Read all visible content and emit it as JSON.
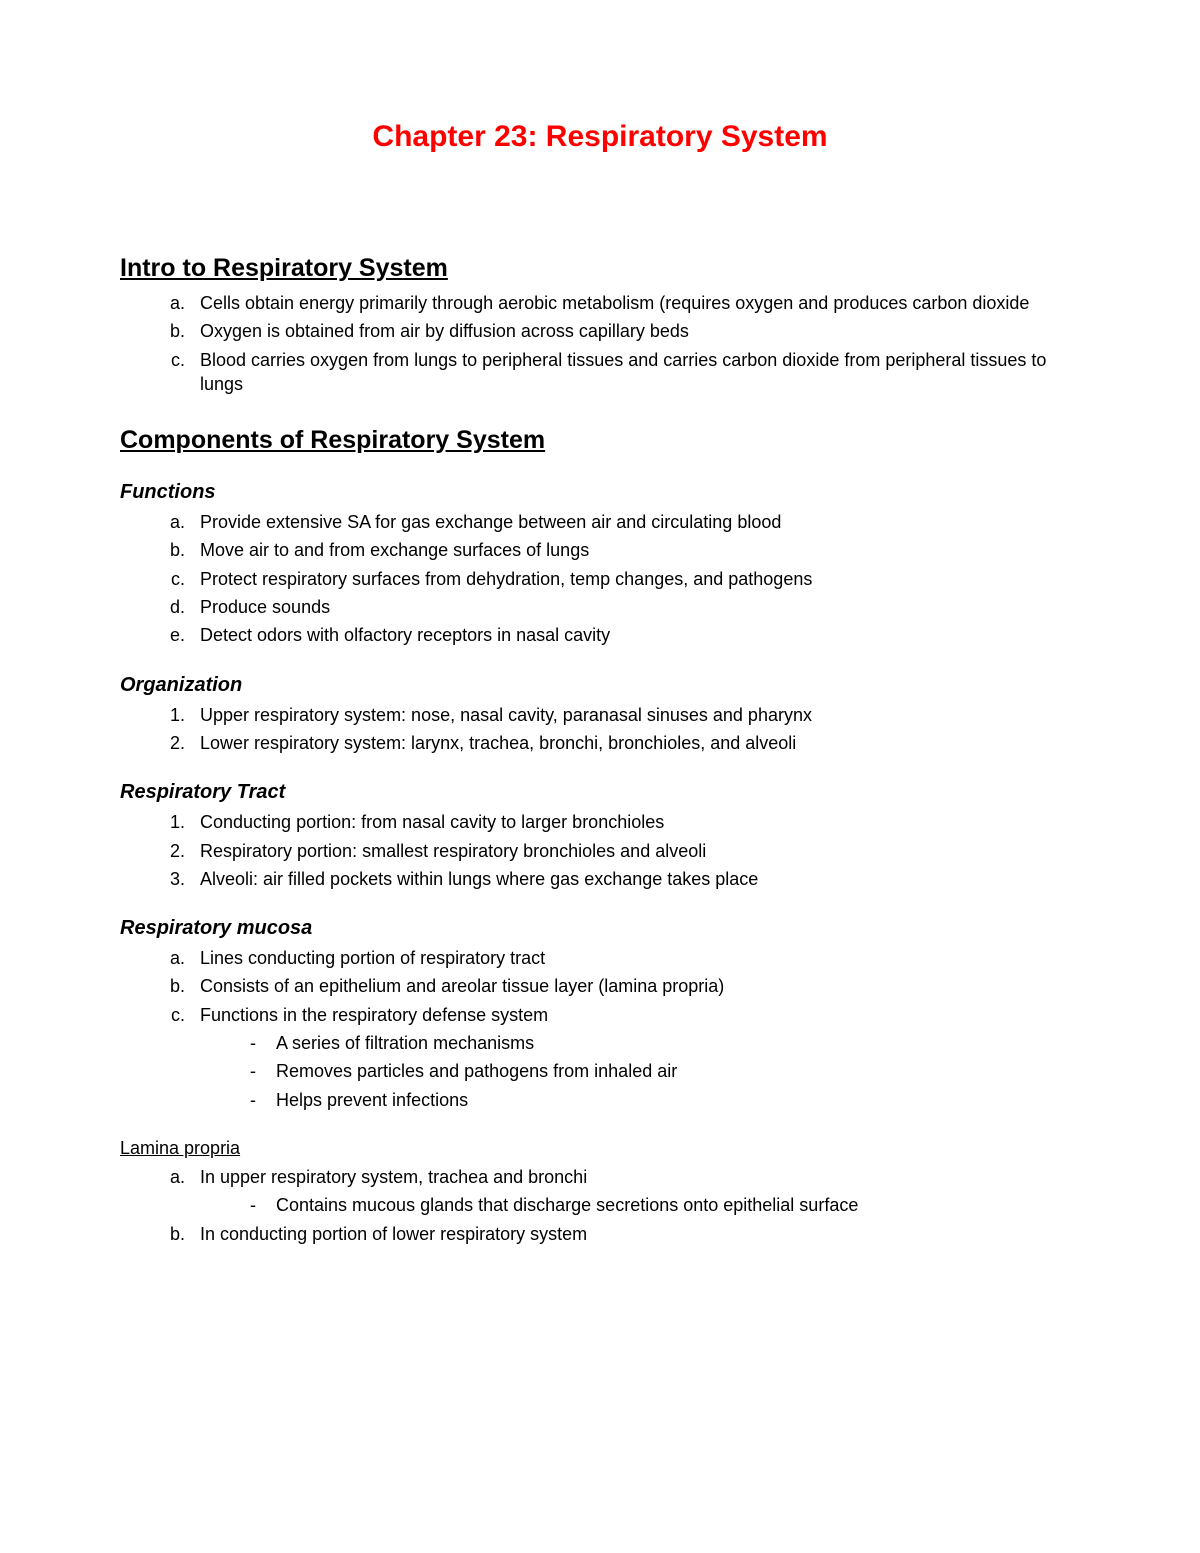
{
  "styles": {
    "title_color": "#ff0000",
    "title_fontsize": 30,
    "section_fontsize": 25,
    "sub_fontsize": 20,
    "minor_fontsize": 18,
    "body_fontsize": 18,
    "text_color": "#000000",
    "background_color": "#ffffff"
  },
  "title": "Chapter 23: Respiratory System",
  "sections": {
    "intro": {
      "heading": "Intro to Respiratory System",
      "items": [
        "Cells obtain energy primarily through aerobic metabolism (requires oxygen and produces carbon dioxide",
        "Oxygen is obtained from air by diffusion across capillary beds",
        "Blood carries oxygen from lungs to peripheral tissues and carries carbon dioxide from peripheral tissues to lungs"
      ]
    },
    "components": {
      "heading": "Components of Respiratory System",
      "functions": {
        "heading": "Functions",
        "items": [
          "Provide extensive SA for gas exchange between air and circulating blood",
          "Move air to and from exchange surfaces of lungs",
          "Protect respiratory surfaces from dehydration, temp changes, and pathogens",
          "Produce sounds",
          "Detect odors with olfactory receptors in nasal cavity"
        ]
      },
      "organization": {
        "heading": "Organization",
        "items": [
          "Upper respiratory system: nose, nasal cavity, paranasal sinuses and pharynx",
          "Lower respiratory system: larynx, trachea, bronchi, bronchioles, and alveoli"
        ]
      },
      "tract": {
        "heading": "Respiratory Tract",
        "items": [
          "Conducting portion: from nasal cavity to larger bronchioles",
          "Respiratory portion: smallest respiratory bronchioles and alveoli",
          "Alveoli: air filled pockets within lungs where gas exchange takes place"
        ]
      },
      "mucosa": {
        "heading": "Respiratory mucosa",
        "items": {
          "a": "Lines conducting portion of respiratory tract",
          "b": "Consists of an epithelium and areolar tissue layer (lamina propria)",
          "c": "Functions in the respiratory defense system",
          "c_sub": [
            "A series of filtration mechanisms",
            "Removes particles and pathogens from inhaled air",
            "Helps prevent infections"
          ]
        }
      },
      "lamina": {
        "heading": "Lamina propria",
        "items": {
          "a": "In upper respiratory system, trachea and bronchi",
          "a_sub": [
            "Contains mucous glands that discharge secretions onto epithelial surface"
          ],
          "b": "In conducting portion of lower respiratory system"
        }
      }
    }
  }
}
